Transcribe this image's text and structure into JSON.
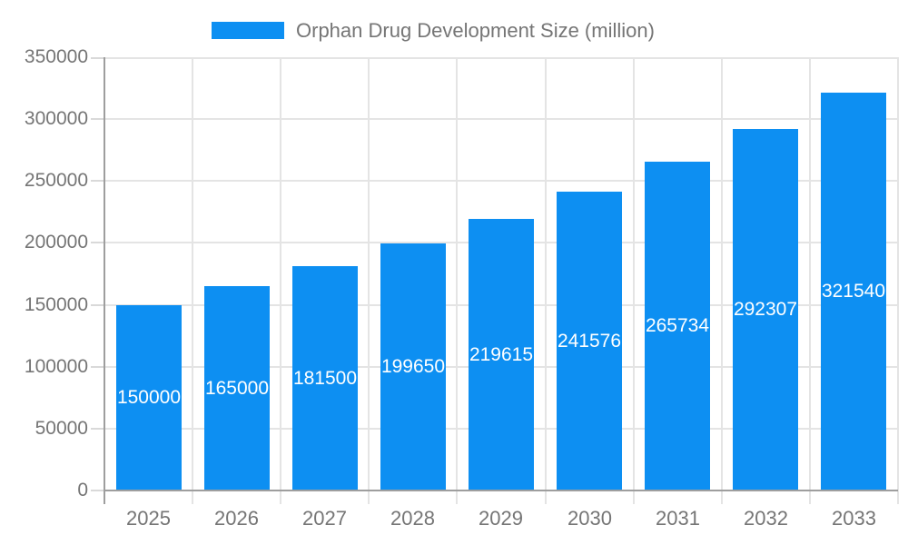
{
  "legend": {
    "position": "top",
    "items": [
      {
        "label": "Orphan Drug Development Size (million)",
        "color": "#0d8ff2"
      }
    ]
  },
  "chart_data": {
    "type": "bar",
    "title": "Orphan Drug Development Size (million)",
    "categories": [
      "2025",
      "2026",
      "2027",
      "2028",
      "2029",
      "2030",
      "2031",
      "2032",
      "2033"
    ],
    "values": [
      150000,
      165000,
      181500,
      199650,
      219615,
      241576,
      265734,
      292307,
      321540
    ],
    "series": [
      {
        "name": "Orphan Drug Development Size (million)",
        "values": [
          150000,
          165000,
          181500,
          199650,
          219615,
          241576,
          265734,
          292307,
          321540
        ]
      }
    ],
    "xlabel": "",
    "ylabel": "",
    "ylim": [
      0,
      350000
    ],
    "ytick_step": 50000,
    "yticks": [
      0,
      50000,
      100000,
      150000,
      200000,
      250000,
      300000,
      350000
    ],
    "grid": true,
    "legend_position": "top",
    "bar_labels_inside": true,
    "colors": {
      "bar": "#0d8ff2",
      "bar_label": "#ffffff",
      "axis": "#9e9e9e",
      "grid": "#e4e4e4",
      "tick": "#d9d9d9",
      "text": "#757575",
      "background": "#ffffff"
    }
  }
}
